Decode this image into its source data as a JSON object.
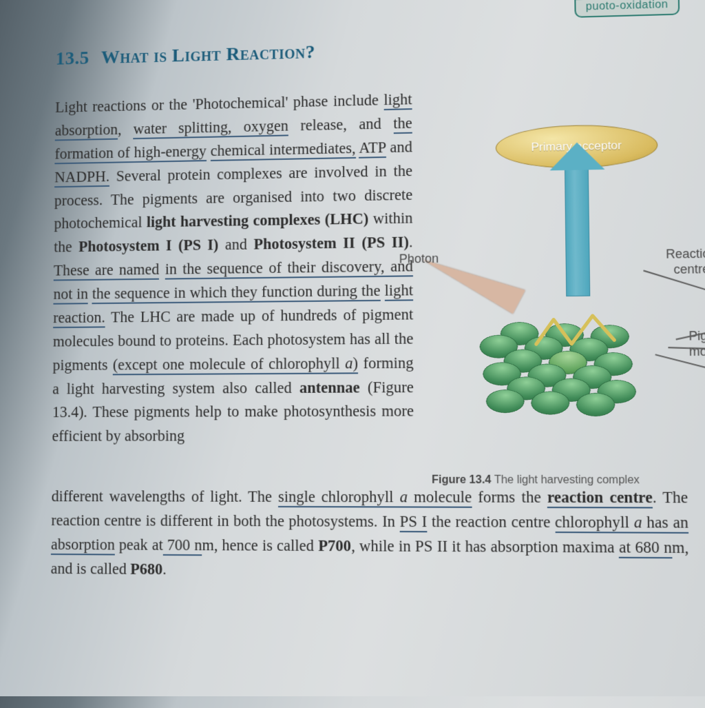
{
  "tab_fragment": "puoto-oxidation",
  "section": {
    "number": "13.5",
    "title": "What is Light Reaction?"
  },
  "paragraph_col": "Light reactions or the 'Photochemical' phase include <span class=\"u\">light absorption</span>, <span class=\"u\">water splitting, oxygen</span> release, and <span class=\"u\">the formation of high-energy</span> <span class=\"u\">chemical intermediates,</span> <span class=\"u\">ATP</span> and <span class=\"u\">NADPH.</span> Several protein complexes are involved in the process. The pigments are organised into two discrete photochemical <b>light harvesting complexes (LHC)</b> within the <b>Photosystem I (PS I)</b> and <b>Photosystem II (PS II)</b>. <span class=\"u\">These are named</span> <span class=\"u\">in the sequence of their discovery, and not in</span> <span class=\"u\">the sequence in which they function during the</span> <span class=\"u\">light reaction.</span> The LHC are made up of hundreds of pigment molecules bound to proteins. Each photosystem has all the pigments <span class=\"u\">(except one molecule of chlorophyll <span class=\"ital\">a</span>)</span> forming a light harvesting system also called <b>antennae</b> (Figure 13.4). These pigments help to make photosynthesis more efficient by absorbing",
  "paragraph_full": "different wavelengths of light. The <span class=\"u\">single chlorophyll <span class=\"ital\">a</span> molecule</span> forms the <b><span class=\"u\">reaction centre</span></b>. The reaction centre is different in both the photosystems. In <span class=\"u\">PS I</span> the reaction centre <span class=\"u\">chlorophyll <span class=\"ital\">a</span> has an absorption</span> peak at<span class=\"u\"> 700 n</span>m, hence is called <b>P700</b>, while in PS II it has absorption maxima <span class=\"u\">at 680 n</span>m, and is called <b>P680</b>.",
  "figure": {
    "acceptor_label": "Primary acceptor",
    "photon_label": "Photon",
    "reaction_label_l1": "Reaction",
    "reaction_label_l2": "centre",
    "pigment_label_l1": "Pigment",
    "pigment_label_l2": "molecules",
    "caption_bold": "Figure 13.4",
    "caption_rest": " The light harvesting complex",
    "colors": {
      "acceptor_fill": "#d9bb5f",
      "arrow_fill": "#5bb0c5",
      "pigment_fill": "#3f8a57",
      "photon_fill": "#d7b7a3",
      "heading_color": "#1c5c7a"
    },
    "grid": [
      1,
      3,
      5,
      5,
      3,
      1
    ]
  }
}
